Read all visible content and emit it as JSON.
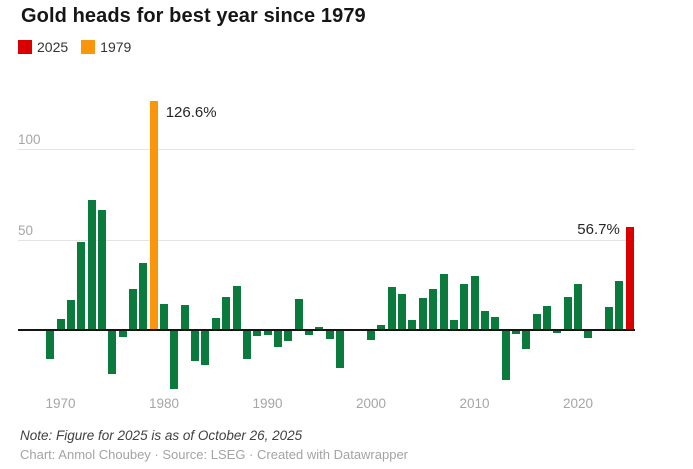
{
  "header": {
    "title": "Gold heads for best year since 1979"
  },
  "legend": {
    "items": [
      {
        "label": "2025",
        "color": "#db0000"
      },
      {
        "label": "1979",
        "color": "#f9960b"
      }
    ]
  },
  "chart_data": {
    "type": "bar",
    "title": "Gold heads for best year since 1979",
    "xlabel": "",
    "ylabel": "",
    "x": [
      1969,
      1970,
      1971,
      1972,
      1973,
      1974,
      1975,
      1976,
      1977,
      1978,
      1979,
      1980,
      1981,
      1982,
      1983,
      1984,
      1985,
      1986,
      1987,
      1988,
      1989,
      1990,
      1991,
      1992,
      1993,
      1994,
      1995,
      1996,
      1997,
      1998,
      1999,
      2000,
      2001,
      2002,
      2003,
      2004,
      2005,
      2006,
      2007,
      2008,
      2009,
      2010,
      2011,
      2012,
      2013,
      2014,
      2015,
      2016,
      2017,
      2018,
      2019,
      2020,
      2021,
      2022,
      2023,
      2024,
      2025
    ],
    "values": [
      -16,
      6.1,
      16.3,
      48.7,
      72,
      66.5,
      -24.1,
      -3.9,
      22.8,
      37.2,
      126.6,
      14.4,
      -32.6,
      14,
      -17,
      -19.3,
      6.5,
      18,
      24.5,
      -15.9,
      -3.1,
      -2.6,
      -9.6,
      -6.2,
      17.2,
      -2.6,
      1.4,
      -5,
      -21,
      -0.8,
      0.5,
      -5.5,
      2.5,
      23.7,
      19.8,
      5.7,
      17.9,
      22.9,
      31.1,
      5.3,
      25.3,
      30,
      10.3,
      7,
      -27.8,
      -2.4,
      -10.5,
      8.6,
      13.1,
      -1.9,
      18.1,
      25.2,
      -4.3,
      -0.3,
      12.6,
      27,
      56.7
    ],
    "unit": "%",
    "bar_color_default": "#0b7b3d",
    "highlights": [
      {
        "year": 1979,
        "color": "#f9960b",
        "label": "126.6%"
      },
      {
        "year": 2025,
        "color": "#db0000",
        "label": "56.7%"
      }
    ],
    "y_ticks": [
      50,
      100
    ],
    "x_ticks": [
      1970,
      1980,
      1990,
      2000,
      2010,
      2020
    ],
    "ylim": [
      -35,
      135
    ],
    "grid": "horizontal",
    "legend_position": "top-left",
    "axis_colors": {
      "tick_text": "#a6a6a6",
      "gridline": "#e4e4e4",
      "baseline": "#141414"
    }
  },
  "footer": {
    "note": "Note: Figure for 2025 is as of October 26, 2025",
    "credit": "Chart: Anmol Choubey · Source: LSEG · Created with Datawrapper"
  }
}
